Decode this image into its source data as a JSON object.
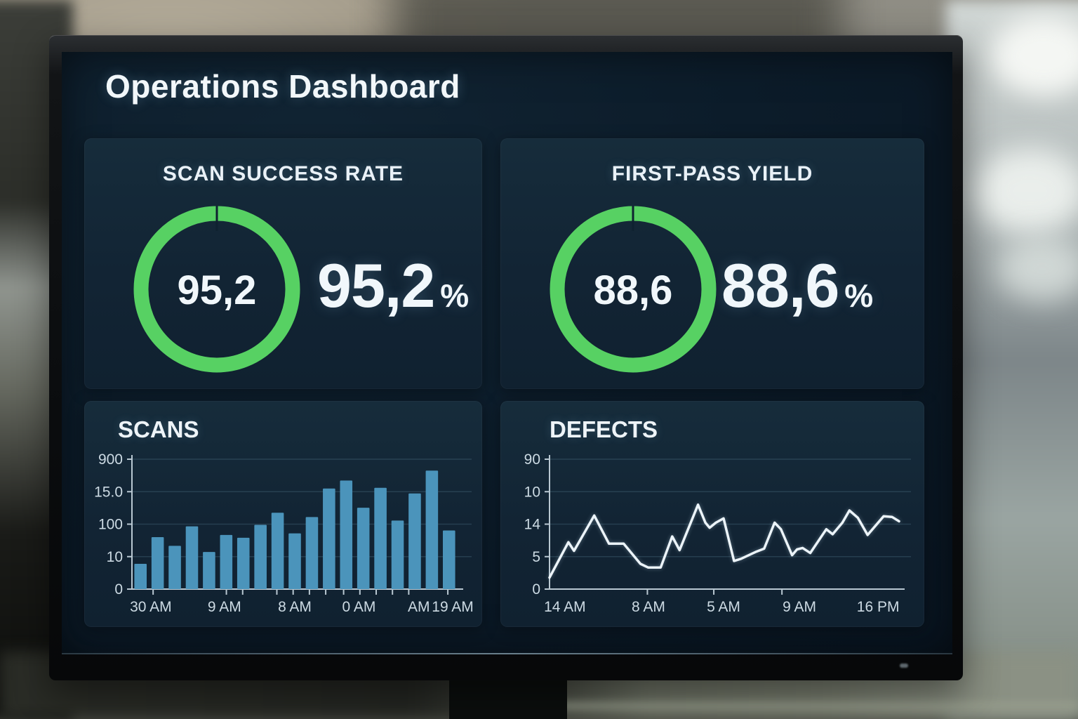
{
  "title": "Operations Dashboard",
  "colors": {
    "ring_green": "#57d163",
    "bar_blue": "#4b94bb",
    "line_white": "#ecf4f9",
    "panel_bg": "#122434",
    "screen_bg": "#0c1c2a"
  },
  "kpis": [
    {
      "title": "SCAN SUCCESS RATE",
      "gauge_label": "95,2",
      "value": "95,2",
      "unit": "%"
    },
    {
      "title": "FIRST-PASS YIELD",
      "gauge_label": "88,6",
      "value": "88,6",
      "unit": "%"
    }
  ],
  "chart_data": [
    {
      "id": "scans",
      "type": "bar",
      "title": "SCANS",
      "ylim": [
        0,
        900
      ],
      "grid": true,
      "y_tick_labels_top_down": [
        "900",
        "15.0",
        "100",
        "10",
        "0"
      ],
      "x_tick_labels": [
        {
          "label": "30 AM",
          "pos": 0.058
        },
        {
          "label": "9 AM",
          "pos": 0.284
        },
        {
          "label": "8 AM",
          "pos": 0.5
        },
        {
          "label": "0 AM",
          "pos": 0.697
        },
        {
          "label": "AM",
          "pos": 0.881
        },
        {
          "label": "19 AM",
          "pos": 0.985
        }
      ],
      "baseline_ticks": [
        0.065,
        0.29,
        0.34,
        0.445,
        0.495,
        0.545,
        0.595,
        0.65,
        0.7,
        0.75,
        0.8,
        0.85,
        0.97
      ],
      "values": [
        175,
        360,
        300,
        435,
        257,
        375,
        356,
        445,
        529,
        386,
        499,
        697,
        752,
        564,
        702,
        475,
        663,
        821,
        406
      ]
    },
    {
      "id": "defects",
      "type": "line",
      "title": "DEFECTS",
      "ylim": [
        0,
        90
      ],
      "grid": true,
      "y_tick_labels_top_down": [
        "90",
        "10",
        "14",
        "5",
        "0"
      ],
      "x_tick_labels": [
        {
          "label": "14 AM",
          "pos": 0.044
        },
        {
          "label": "8 AM",
          "pos": 0.283
        },
        {
          "label": "5 AM",
          "pos": 0.498
        },
        {
          "label": "9 AM",
          "pos": 0.715
        },
        {
          "label": "16 PM",
          "pos": 0.94
        }
      ],
      "baseline_ticks": [
        0.28,
        0.47,
        0.665
      ],
      "x": [
        0,
        5.4,
        7,
        12.8,
        17,
        21.2,
        26,
        28.2,
        31.8,
        35.1,
        37.2,
        42.5,
        44.6,
        45.8,
        47.6,
        49.8,
        52.8,
        54.8,
        59.2,
        61.4,
        64.4,
        66.2,
        69.4,
        70.8,
        72.4,
        74.6,
        79.2,
        81,
        83.8,
        85.8,
        88.2,
        91,
        95.6,
        98,
        100
      ],
      "values": [
        8,
        32.5,
        26.5,
        51,
        31.5,
        31.5,
        17.5,
        15,
        15,
        36.5,
        27,
        58.5,
        46,
        42.5,
        46,
        49,
        19.5,
        21,
        26,
        28,
        46,
        41.5,
        23.5,
        27.5,
        28.5,
        25,
        41.5,
        38,
        46,
        54.5,
        49.5,
        37.5,
        50.5,
        50,
        47
      ]
    }
  ]
}
